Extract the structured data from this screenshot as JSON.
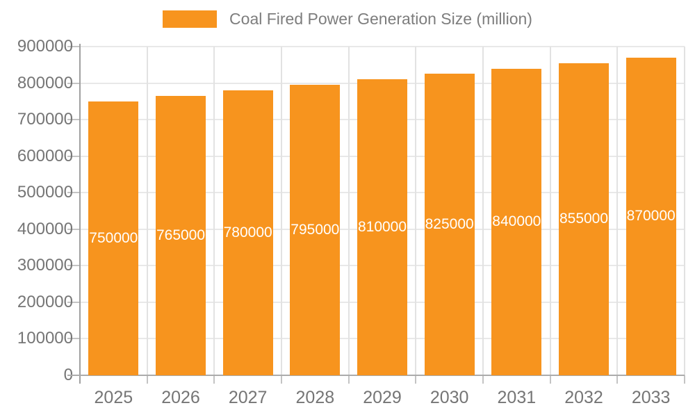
{
  "legend": {
    "label": "Coal Fired Power Generation Size (million)"
  },
  "chart_data": {
    "type": "bar",
    "title": "Coal Fired Power Generation Size (million)",
    "categories": [
      "2025",
      "2026",
      "2027",
      "2028",
      "2029",
      "2030",
      "2031",
      "2032",
      "2033"
    ],
    "values": [
      750000,
      765000,
      780000,
      795000,
      810000,
      825000,
      840000,
      855000,
      870000
    ],
    "value_labels": [
      "750000",
      "765000",
      "780000",
      "795000",
      "810000",
      "825000",
      "840000",
      "855000",
      "870000"
    ],
    "xlabel": "",
    "ylabel": "",
    "ylim": [
      0,
      900000
    ],
    "ytick_step": 100000,
    "ytick_labels": [
      "0",
      "100000",
      "200000",
      "300000",
      "400000",
      "500000",
      "600000",
      "700000",
      "800000",
      "900000"
    ],
    "grid": true,
    "legend_position": "top",
    "bar_color": "#F7941E",
    "value_label_color": "#ffffff",
    "axis_label_color": "#757575",
    "gridline_color": "#e8e8e8",
    "background_color": "#ffffff"
  }
}
